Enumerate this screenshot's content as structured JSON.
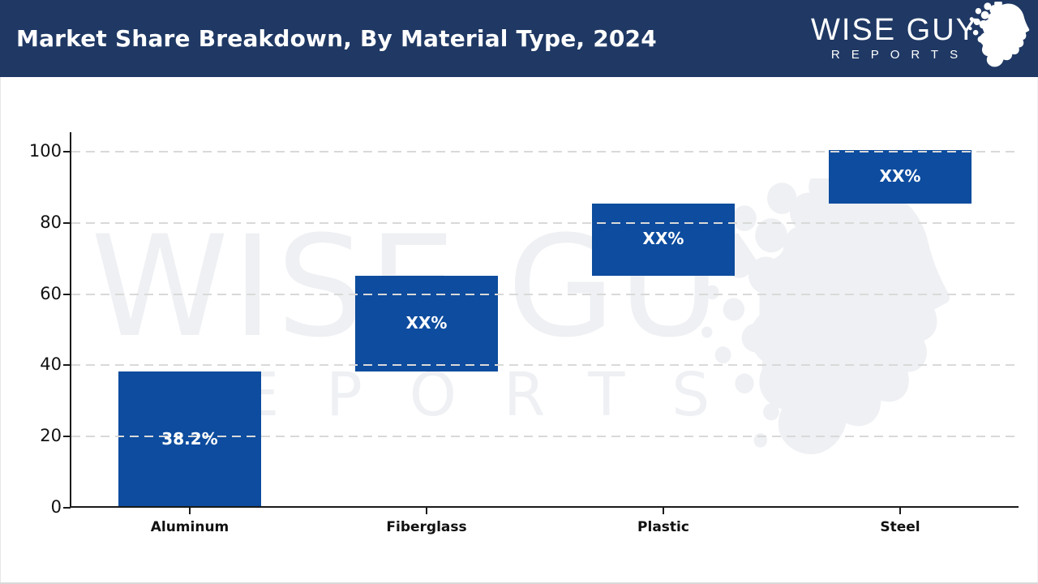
{
  "header": {
    "title": "Market Share Breakdown, By Material Type, 2024",
    "bg_color": "#1F3864",
    "text_color": "#FFFFFF",
    "logo": {
      "line1": "WISE GUY",
      "line2": "REPORTS"
    }
  },
  "watermark": {
    "line1": "WISE GUY",
    "line2": "REPORTS"
  },
  "chart_data": {
    "type": "bar",
    "variant": "waterfall",
    "title": "Market Share Breakdown, By Material Type, 2024",
    "categories": [
      "Aluminum",
      "Fiberglass",
      "Plastic",
      "Steel"
    ],
    "bar_labels": [
      "38.2%",
      "XX%",
      "XX%",
      "XX%"
    ],
    "segment_start": [
      0,
      38.2,
      65.2,
      85.5
    ],
    "segment_end": [
      38.2,
      65.2,
      85.5,
      100.4
    ],
    "unit": "%",
    "xlabel": "",
    "ylabel": "",
    "y_ticks": [
      0,
      20,
      40,
      60,
      80,
      100
    ],
    "ylim": [
      0,
      105
    ],
    "grid": "horizontal-dashed",
    "grid_over_bars": true,
    "legend": "none",
    "bar_color": "#0D4C9E",
    "bar_label_color": "#FFFFFF",
    "axis_color": "#1A1A1A",
    "tick_label_color": "#111111",
    "gridline_color": "#D9D9D9"
  }
}
